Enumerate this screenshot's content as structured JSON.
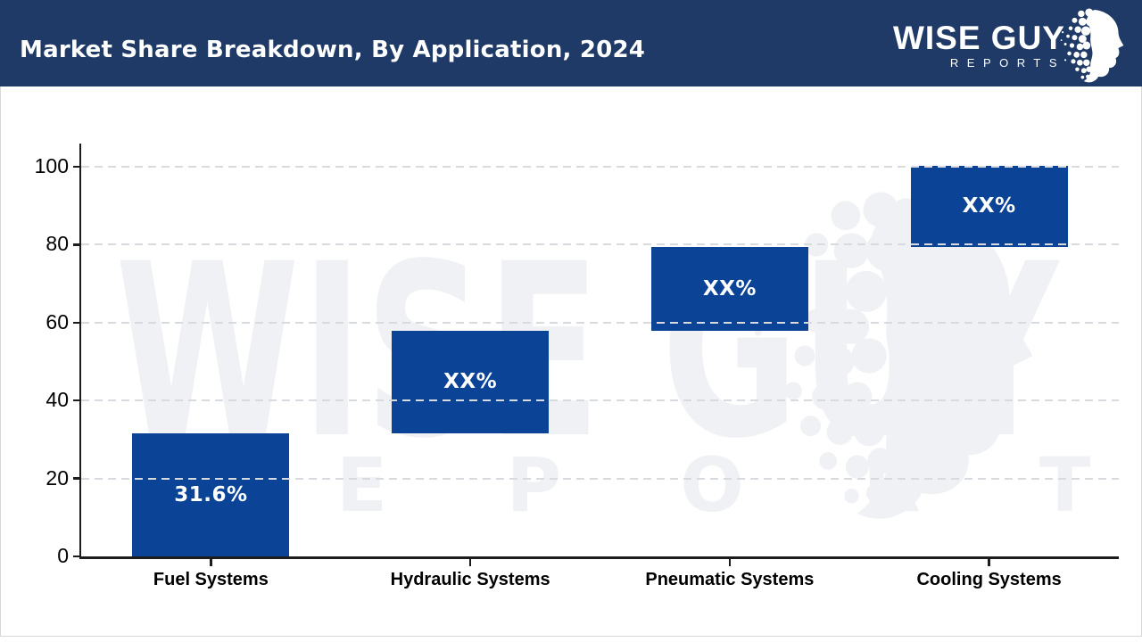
{
  "header": {
    "title": "Market Share Breakdown, By Application, 2024",
    "logo": {
      "wordmark": "WISE GUY",
      "subtext": "REPORTS"
    }
  },
  "watermark": {
    "line1": "WISE GUY",
    "line2": "R E P O R T S"
  },
  "chart_data": {
    "type": "bar",
    "subtype": "waterfall",
    "title": "Market Share Breakdown, By Application, 2024",
    "categories": [
      "Fuel Systems",
      "Hydraulic Systems",
      "Pneumatic Systems",
      "Cooling Systems"
    ],
    "segments": [
      {
        "category": "Fuel Systems",
        "start": 0,
        "end": 31.6,
        "label": "31.6%"
      },
      {
        "category": "Hydraulic Systems",
        "start": 31.6,
        "end": 57.9,
        "label": "XX%"
      },
      {
        "category": "Pneumatic Systems",
        "start": 57.9,
        "end": 79.4,
        "label": "XX%"
      },
      {
        "category": "Cooling Systems",
        "start": 79.4,
        "end": 100.3,
        "label": "XX%"
      }
    ],
    "xlabel": "",
    "ylabel": "",
    "y_ticks": [
      0,
      20,
      40,
      60,
      80,
      100
    ],
    "ylim": [
      0,
      105.5
    ],
    "grid": "horizontal-dashed",
    "legend": "none",
    "colors": {
      "bar": "#0b4397",
      "bar_label": "#ffffff",
      "header_bg": "#1f3a66",
      "axis": "#1c1c1c",
      "gridline": "#d7dade",
      "watermark": "#f0f1f4"
    }
  }
}
